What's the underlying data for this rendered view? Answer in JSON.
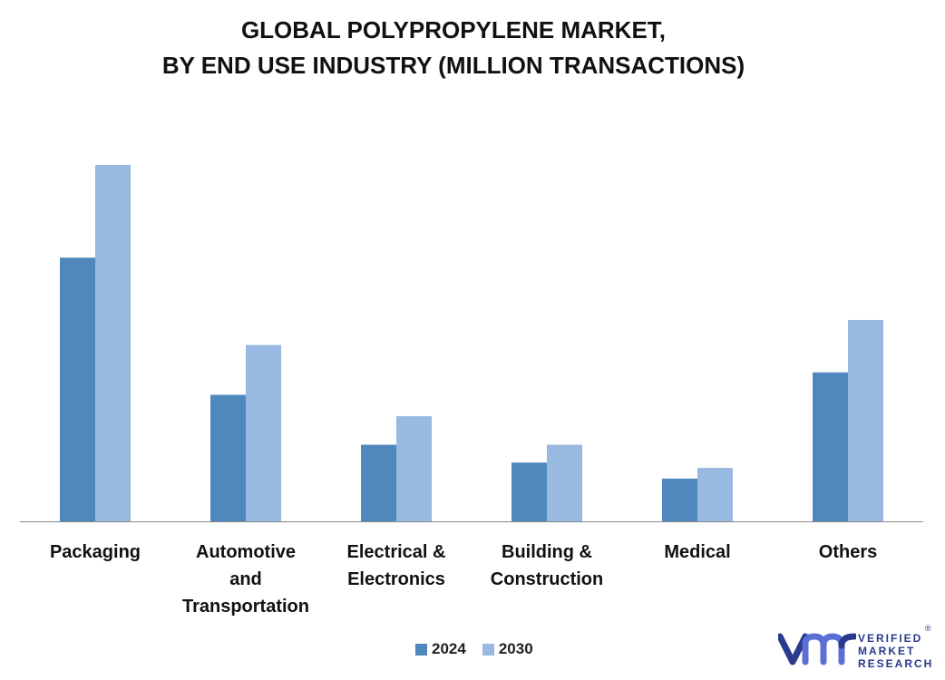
{
  "title_line1": "GLOBAL POLYPROPYLENE MARKET,",
  "title_line2": "BY END USE INDUSTRY (MILLION TRANSACTIONS)",
  "colors": {
    "s2024": "#4f88bd",
    "s2030": "#98b9e0",
    "axis": "#888888",
    "text": "#111111",
    "brand": "#2a3a8c"
  },
  "chart_data": {
    "type": "bar",
    "categories": [
      [
        "Packaging"
      ],
      [
        "Automotive",
        "and",
        "Transportation"
      ],
      [
        "Electrical &",
        "Electronics"
      ],
      [
        "Building &",
        "Construction"
      ],
      [
        "Medical"
      ],
      [
        "Others"
      ]
    ],
    "series": [
      {
        "name": "2024",
        "values": [
          74,
          35.5,
          21.5,
          16.5,
          12,
          41.8
        ]
      },
      {
        "name": "2030",
        "values": [
          100,
          49.5,
          29.5,
          21.5,
          15,
          56.5
        ]
      }
    ],
    "ylim": [
      0,
      100
    ],
    "grid": false,
    "legend": "bottom"
  },
  "legend": {
    "label_2024": "2024",
    "label_2030": "2030"
  },
  "brand": {
    "line1": "VERIFIED",
    "line2": "MARKET",
    "line3": "RESEARCH",
    "reg": "®"
  }
}
